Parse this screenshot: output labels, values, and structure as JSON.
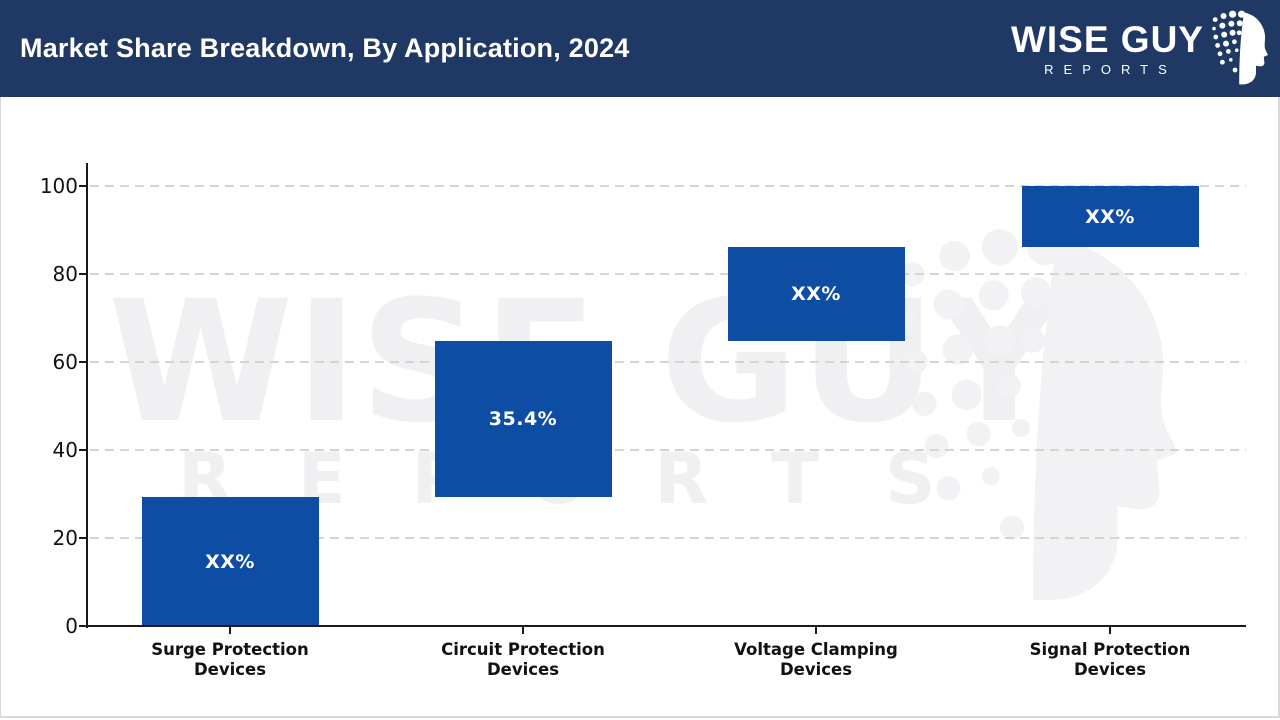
{
  "header": {
    "title": "Market Share Breakdown, By Application, 2024",
    "logo": {
      "name": "Wise Guy Reports",
      "line1": "WISE GUY",
      "line2": "REPORTS"
    }
  },
  "watermark": {
    "line1": "WISE GUY",
    "line2": "REPORTS"
  },
  "chart_data": {
    "type": "bar",
    "subtype": "floating-segment-waterfall",
    "title": "Market Share Breakdown, By Application, 2024",
    "categories": [
      "Surge Protection Devices",
      "Circuit Protection Devices",
      "Voltage Clamping Devices",
      "Signal Protection Devices"
    ],
    "category_lines": [
      [
        "Surge Protection",
        "Devices"
      ],
      [
        "Circuit Protection",
        "Devices"
      ],
      [
        "Voltage Clamping",
        "Devices"
      ],
      [
        "Signal Protection",
        "Devices"
      ]
    ],
    "segments": [
      {
        "category": "Surge Protection Devices",
        "start": 0,
        "end": 29.3,
        "value": 29.3,
        "label": "XX%"
      },
      {
        "category": "Circuit Protection Devices",
        "start": 29.3,
        "end": 64.7,
        "value": 35.4,
        "label": "35.4%"
      },
      {
        "category": "Voltage Clamping Devices",
        "start": 64.7,
        "end": 86.1,
        "value": 21.4,
        "label": "XX%"
      },
      {
        "category": "Signal Protection Devices",
        "start": 86.1,
        "end": 100,
        "value": 13.9,
        "label": "XX%"
      }
    ],
    "xlabel": "",
    "ylabel": "",
    "yticks": [
      0,
      20,
      40,
      60,
      80,
      100
    ],
    "ylim": [
      0,
      105
    ],
    "grid": "horizontal-dashed",
    "legend": "none",
    "colors": {
      "bar": "#0D4DA3",
      "bar_label": "#FFFFFF",
      "header_bg": "#1F3864",
      "grid_line": "#D4D4D4",
      "axis_line": "#1A1A1A",
      "tick_label": "#111111",
      "watermark": "#F0F0F2"
    }
  }
}
